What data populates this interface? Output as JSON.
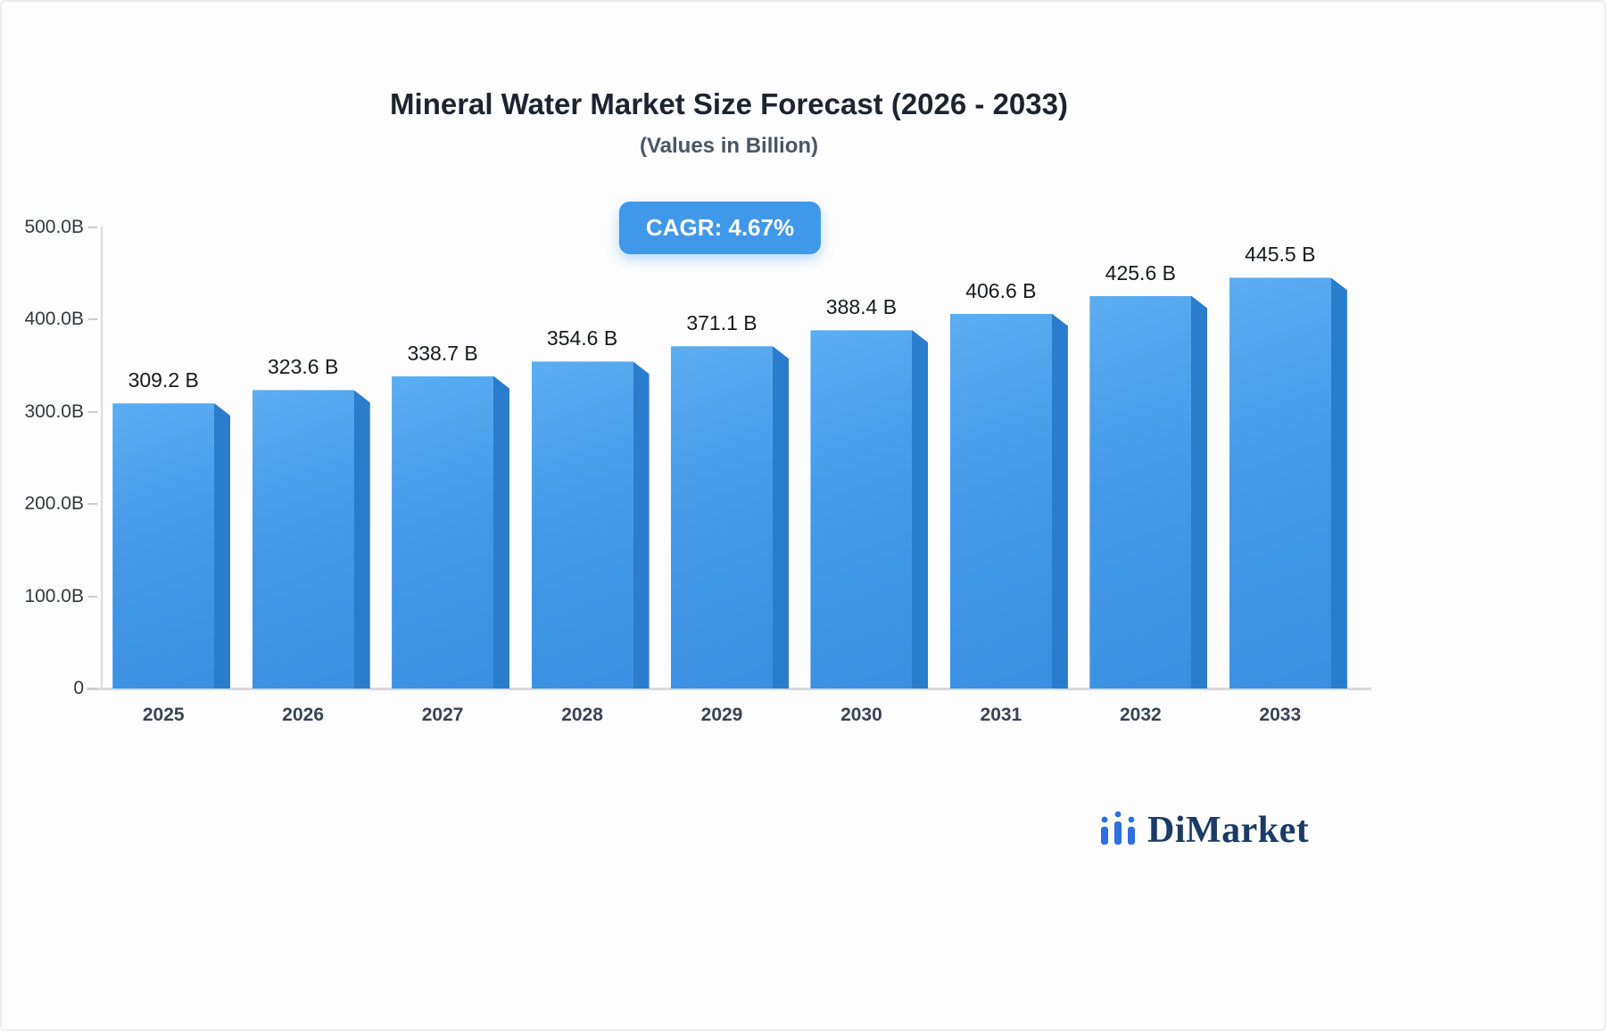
{
  "badge": {
    "label": "CAGR: 4.67%"
  },
  "logo": {
    "text": "DiMarket"
  },
  "chart_data": {
    "type": "bar",
    "title": "Mineral Water Market Size Forecast (2026 - 2033)",
    "subtitle": "(Values in Billion)",
    "categories": [
      "2025",
      "2026",
      "2027",
      "2028",
      "2029",
      "2030",
      "2031",
      "2032",
      "2033"
    ],
    "values": [
      309.2,
      323.6,
      338.7,
      354.6,
      371.1,
      388.4,
      406.6,
      425.6,
      445.5
    ],
    "value_labels": [
      "309.2 B",
      "323.6 B",
      "338.7 B",
      "354.6 B",
      "371.1 B",
      "388.4 B",
      "406.6 B",
      "425.6 B",
      "445.5 B"
    ],
    "unit": "Billion",
    "xlabel": "",
    "ylabel": "",
    "ylim": [
      0,
      500
    ],
    "ytick_values": [
      0,
      100,
      200,
      300,
      400,
      500
    ],
    "ytick_labels": [
      "0",
      "100.0B",
      "200.0B",
      "300.0B",
      "400.0B",
      "500.0B"
    ],
    "grid": "off",
    "legend": "none",
    "bar_color": "#449ae8",
    "bar_side_color": "#2a7ccc",
    "accent_color": "#4098ea"
  }
}
